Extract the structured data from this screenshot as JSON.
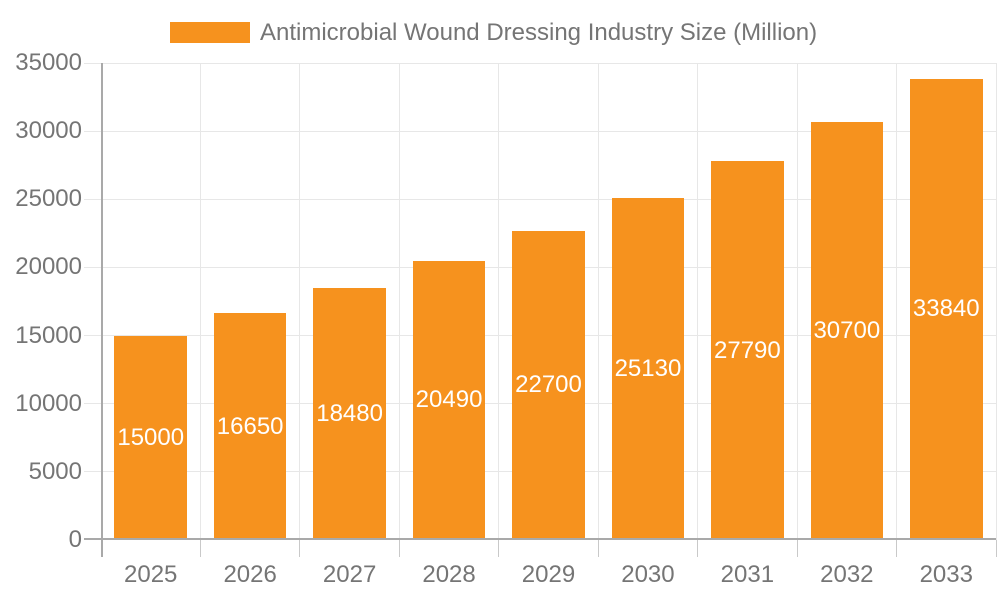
{
  "chart_data": {
    "type": "bar",
    "title": "Antimicrobial Wound Dressing Industry Size (Million)",
    "series_name": "Antimicrobial Wound Dressing Industry Size (Million)",
    "categories": [
      "2025",
      "2026",
      "2027",
      "2028",
      "2029",
      "2030",
      "2031",
      "2032",
      "2033"
    ],
    "values": [
      15000,
      16650,
      18480,
      20490,
      22700,
      25130,
      27790,
      30700,
      33840
    ],
    "bar_value_labels": [
      "15000",
      "16650",
      "18480",
      "20490",
      "22700",
      "25130",
      "27790",
      "30700",
      "33840"
    ],
    "xlabel": "",
    "ylabel": "",
    "ylim": [
      0,
      35000
    ],
    "ytick_step": 5000,
    "yticks": [
      0,
      5000,
      10000,
      15000,
      20000,
      25000,
      30000,
      35000
    ],
    "grid": true,
    "legend_position": "top",
    "colors": {
      "bar": "#F6921E",
      "bar_label": "#FFFFFF",
      "axis_text": "#757575",
      "gridline": "#E7E7E7",
      "axis_line": "#A9A9A9",
      "tick_line": "#C9C9C9",
      "background": "#FFFFFF"
    }
  }
}
